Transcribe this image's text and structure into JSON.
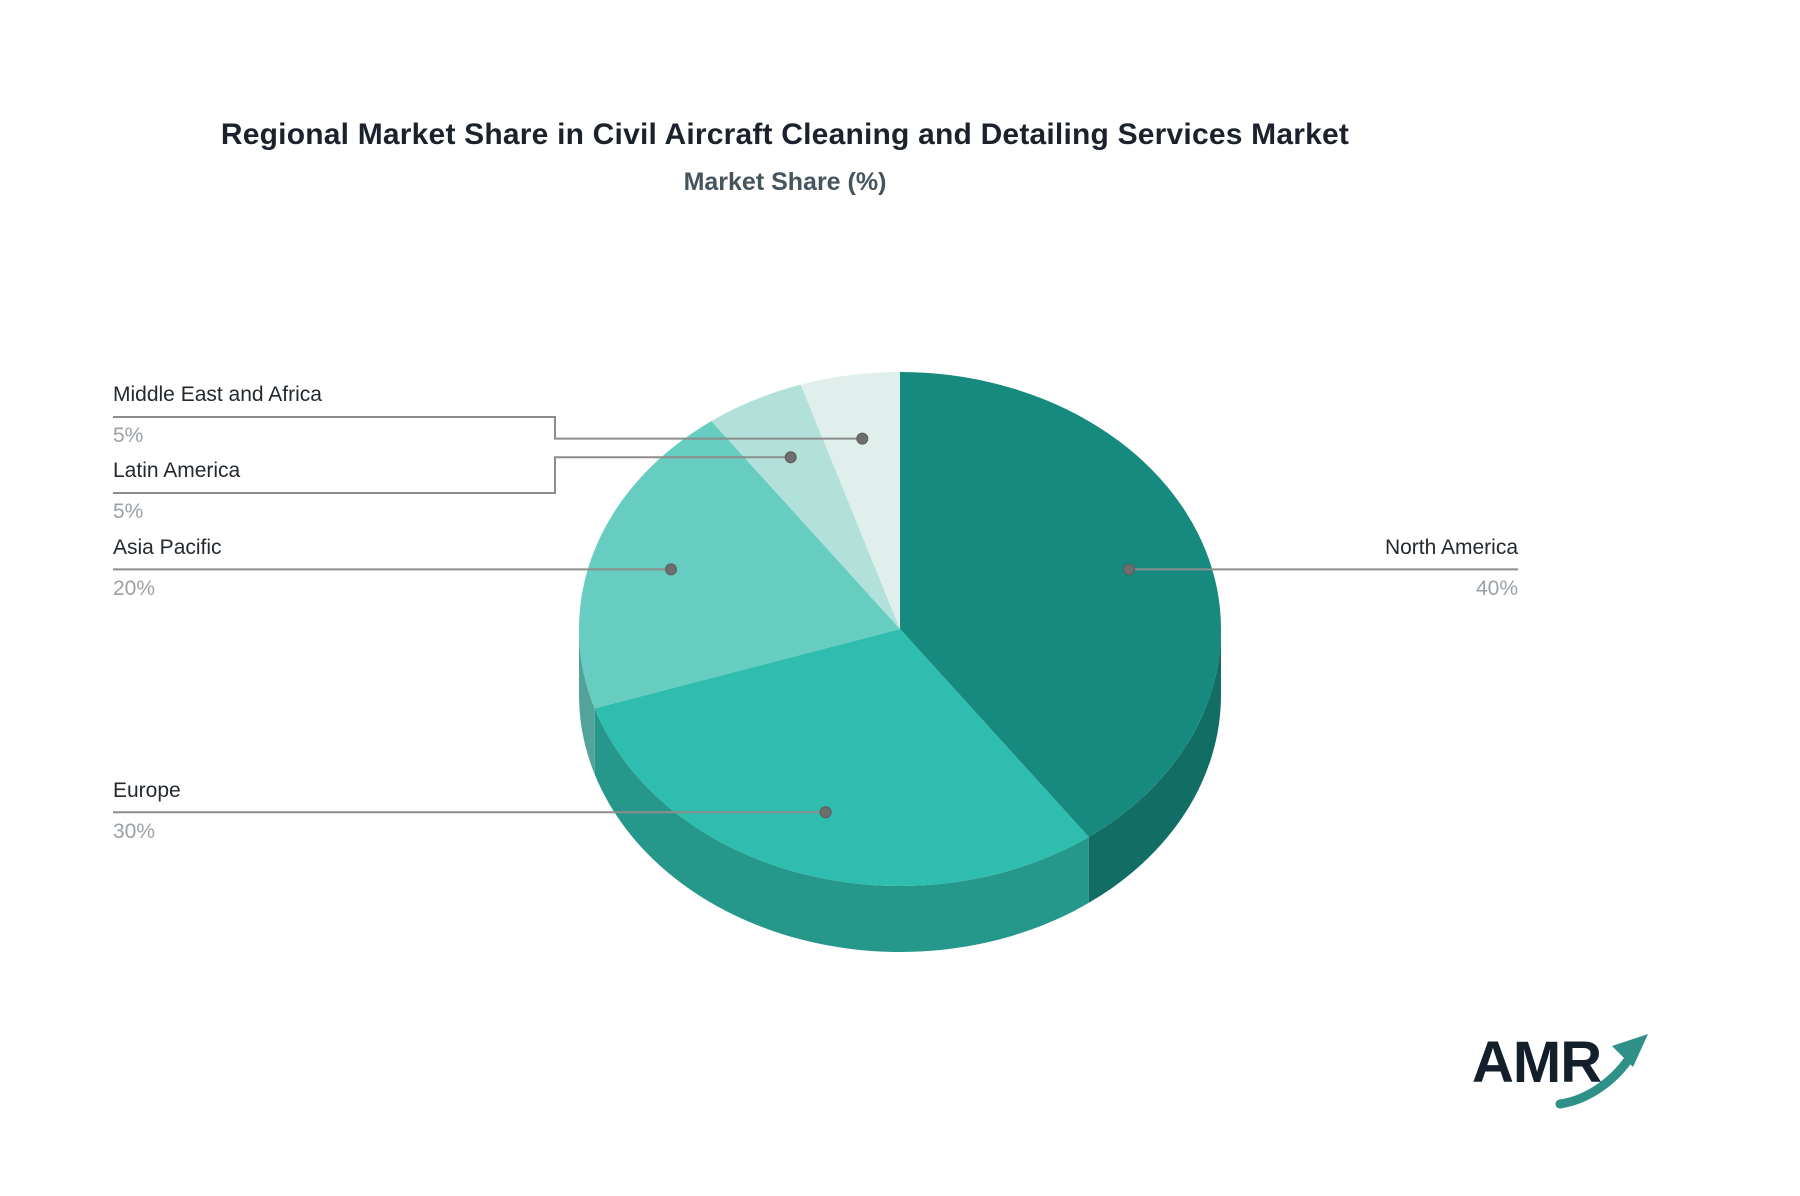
{
  "page": {
    "background": "#ffffff"
  },
  "header": {
    "title": "Regional Market Share in Civil Aircraft Cleaning and Detailing Services Market",
    "subtitle": "Market Share (%)"
  },
  "branding": {
    "logo_text": "AMR",
    "logo_text_color": "#13202b",
    "logo_accent_color": "#2f9087"
  },
  "chart_data": {
    "type": "pie",
    "style": "3d",
    "title": "Regional Market Share in Civil Aircraft Cleaning and Detailing Services Market",
    "subtitle": "Market Share (%)",
    "unit": "%",
    "start_angle_deg": 0,
    "direction": "clockwise",
    "legend_position": "leader-lines",
    "slices": [
      {
        "label": "North America",
        "value": 40,
        "pct": "40%",
        "color": "#168a7e"
      },
      {
        "label": "Europe",
        "value": 30,
        "pct": "30%",
        "color": "#2ebdae"
      },
      {
        "label": "Asia Pacific",
        "value": 20,
        "pct": "20%",
        "color": "#66cdc0"
      },
      {
        "label": "Latin America",
        "value": 5,
        "pct": "5%",
        "color": "#b2e1da"
      },
      {
        "label": "Middle East and Africa",
        "value": 5,
        "pct": "5%",
        "color": "#e1efec"
      }
    ],
    "leader_line_color": "#8d8d8d",
    "leader_dot_color": "#6e6e6e",
    "label_color": "#23292e",
    "value_color": "#9ba1a5"
  }
}
